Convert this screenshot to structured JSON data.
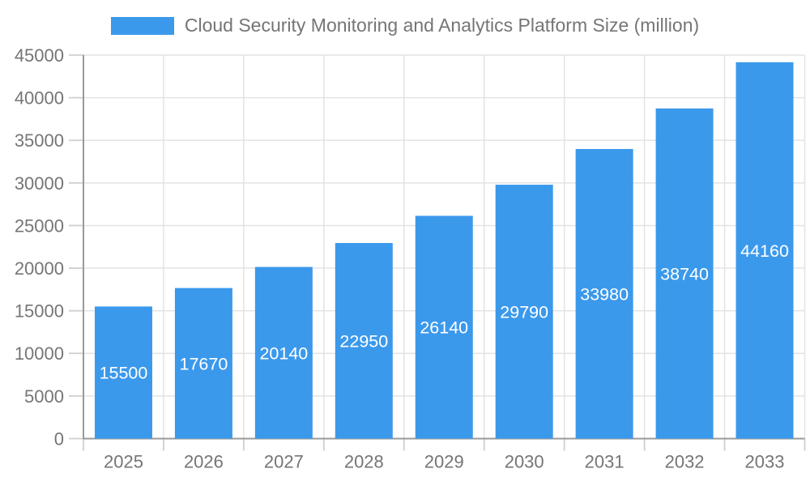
{
  "chart_data": {
    "type": "bar",
    "title": "Cloud Security Monitoring and Analytics Platform Size (million)",
    "categories": [
      "2025",
      "2026",
      "2027",
      "2028",
      "2029",
      "2030",
      "2031",
      "2032",
      "2033"
    ],
    "values": [
      15500,
      17670,
      20140,
      22950,
      26140,
      29790,
      33980,
      38740,
      44160
    ],
    "xlabel": "",
    "ylabel": "",
    "ylim": [
      0,
      45000
    ],
    "ytick_step": 5000,
    "ytick_labels": [
      "0",
      "5000",
      "10000",
      "15000",
      "20000",
      "25000",
      "30000",
      "35000",
      "40000",
      "45000"
    ],
    "grid": true,
    "legend_position": "top",
    "colors": {
      "bar": "#3b99ec",
      "bar_value_label": "#ffffff",
      "axis_text": "#757575",
      "grid_line": "#e3e3e3",
      "tick_mark": "#cfcfcf",
      "axis_line": "#9a9a9a"
    }
  }
}
